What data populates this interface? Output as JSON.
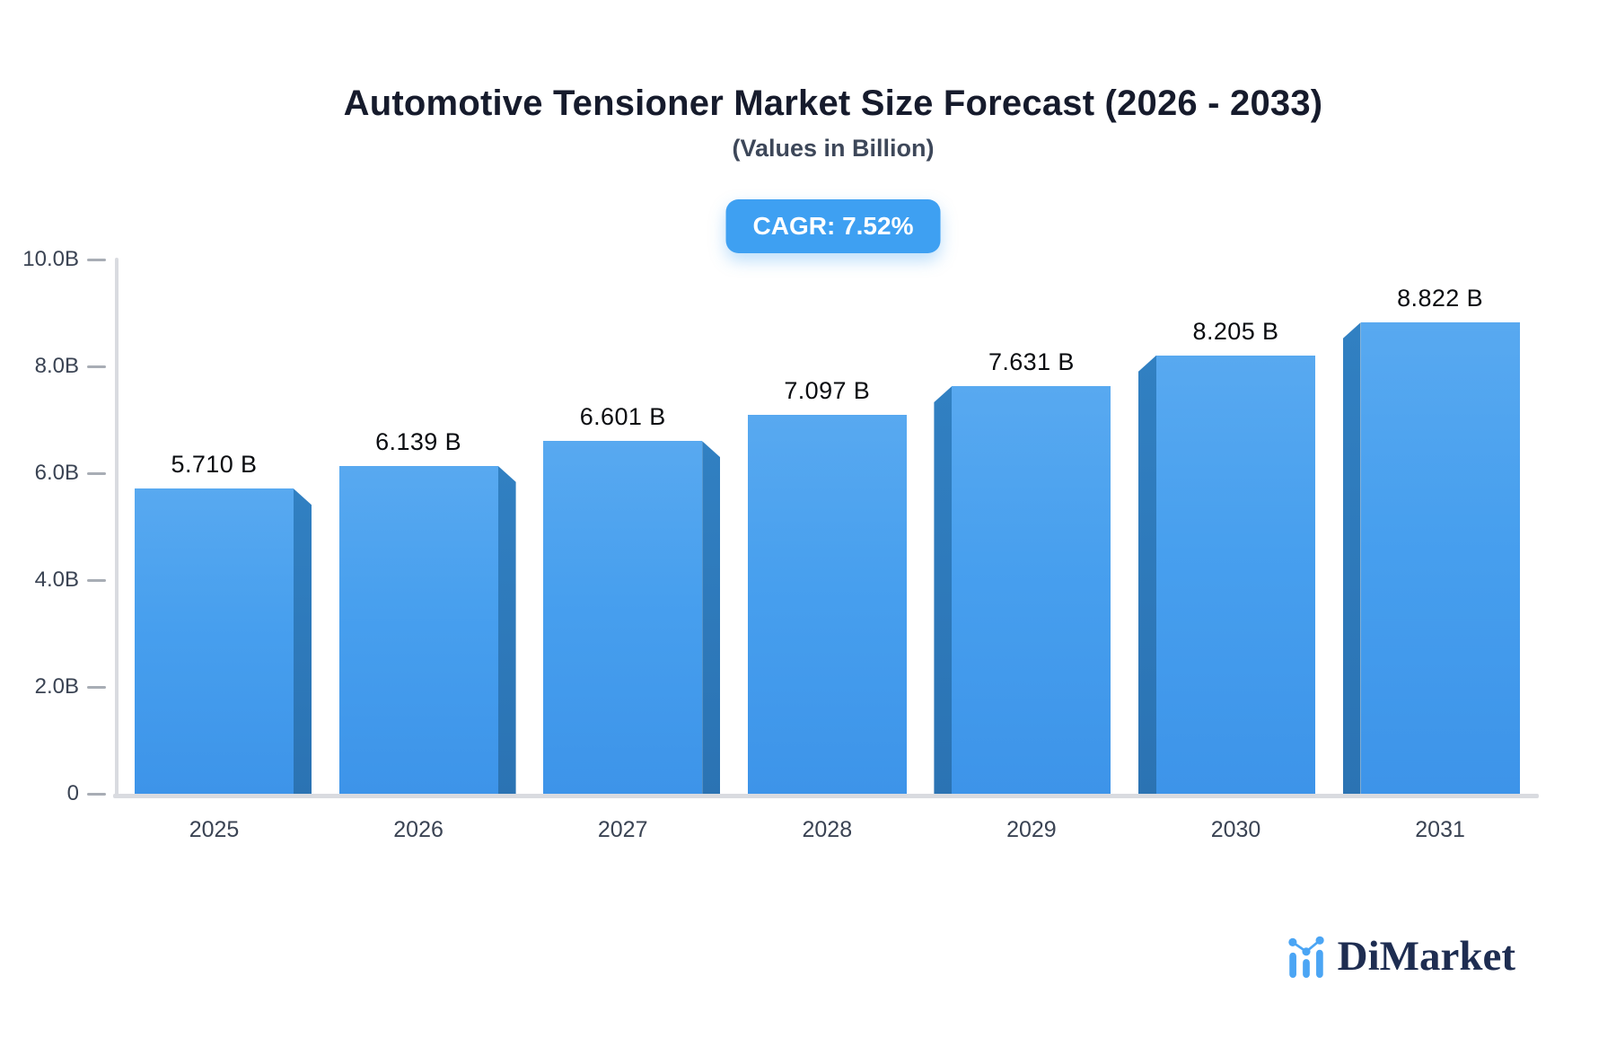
{
  "header": {
    "title": "Automotive Tensioner Market Size Forecast (2026 - 2033)",
    "subtitle": "(Values in Billion)"
  },
  "badge": {
    "label": "CAGR: 7.52%"
  },
  "chart_data": {
    "type": "bar",
    "title": "Automotive Tensioner Market Size Forecast (2026 - 2033)",
    "subtitle": "(Values in Billion)",
    "categories": [
      "2025",
      "2026",
      "2027",
      "2028",
      "2029",
      "2030",
      "2031"
    ],
    "values": [
      5.71,
      6.139,
      6.601,
      7.097,
      7.631,
      8.205,
      8.822
    ],
    "value_labels": [
      "5.710 B",
      "6.139 B",
      "6.601 B",
      "7.097 B",
      "7.631 B",
      "8.205 B",
      "8.822 B"
    ],
    "yticks": [
      {
        "label": "10.0B",
        "value": 10
      },
      {
        "label": "8.0B",
        "value": 8
      },
      {
        "label": "6.0B",
        "value": 6
      },
      {
        "label": "4.0B",
        "value": 4
      },
      {
        "label": "2.0B",
        "value": 2
      },
      {
        "label": "0",
        "value": 0
      }
    ],
    "xlabel": "",
    "ylabel": "",
    "ylim": [
      0,
      10
    ],
    "grid": false,
    "legend": false,
    "bar_3d_sides": [
      "right",
      "right",
      "right",
      "none",
      "left",
      "left",
      "left"
    ],
    "colors": {
      "bar_face_top": "#58a9f0",
      "bar_face_bottom": "#3d94e9",
      "bar_side": "#2e78b8",
      "badge_bg": "#3ea0f2",
      "axis_line": "#d9dbe0",
      "tick_mark": "#a8adb5",
      "tick_text": "#3a4353",
      "value_text": "#0a0c10",
      "title_text": "#161b2c"
    }
  },
  "logo": {
    "text": "DiMarket",
    "icon": "mini-bar-chart-icon"
  }
}
